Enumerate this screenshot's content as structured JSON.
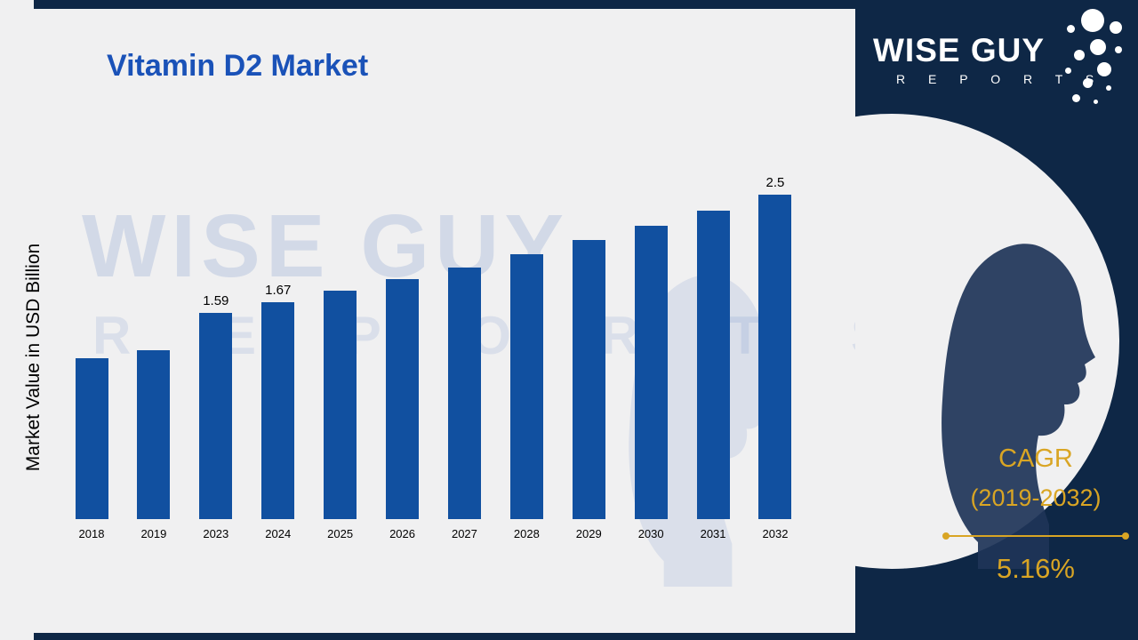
{
  "title": "Vitamin D2 Market",
  "ylabel": "Market Value in USD Billion",
  "watermark": {
    "line1": "WISE GUY",
    "line2": "R E P O R T S"
  },
  "logo": {
    "line1": "WISE GUY",
    "line2": "R E P O R T S"
  },
  "cagr": {
    "label": "CAGR",
    "range": "(2019-2032)",
    "value": "5.16%"
  },
  "colors": {
    "bar": "#1150a0",
    "title": "#1a52b8",
    "panel": "#0e2746",
    "gold": "#d9a524",
    "background": "#f0f0f1"
  },
  "chart_data": {
    "type": "bar",
    "title": "Vitamin D2 Market",
    "xlabel": "",
    "ylabel": "Market Value in USD Billion",
    "unit": "USD Billion",
    "categories": [
      "2018",
      "2019",
      "2023",
      "2024",
      "2025",
      "2026",
      "2027",
      "2028",
      "2029",
      "2030",
      "2031",
      "2032"
    ],
    "values": [
      1.24,
      1.3,
      1.59,
      1.67,
      1.76,
      1.85,
      1.94,
      2.04,
      2.15,
      2.26,
      2.38,
      2.5
    ],
    "data_labels": [
      "",
      "",
      "1.59",
      "1.67",
      "",
      "",
      "",
      "",
      "",
      "",
      "",
      "2.5"
    ],
    "ylim": [
      0,
      2.75
    ],
    "grid": false,
    "legend": "none",
    "annotations": [
      "CAGR (2019-2032) 5.16%"
    ]
  }
}
